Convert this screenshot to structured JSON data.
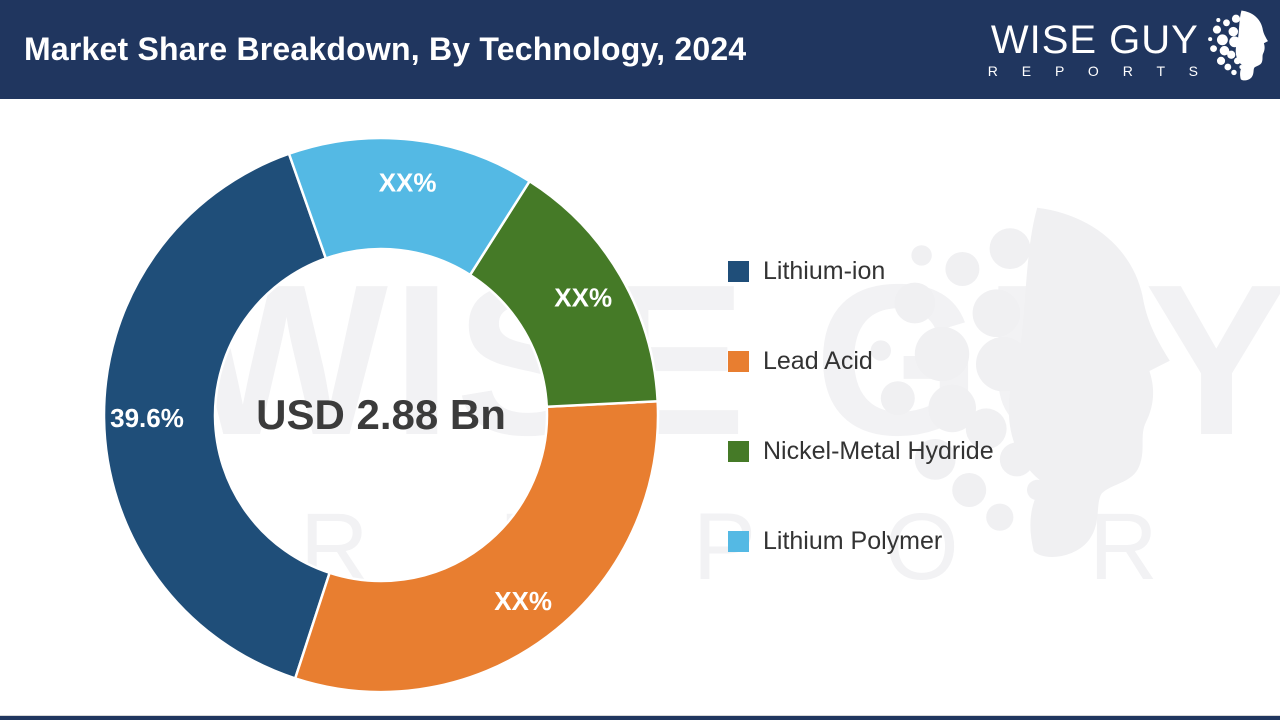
{
  "header": {
    "title": "Market Share Breakdown, By Technology, 2024"
  },
  "brand": {
    "name": "WISE GUY",
    "sub": "R E P O R T S"
  },
  "watermark": {
    "line1": "WISE GUY",
    "line2": "R E P O R T S"
  },
  "chart_data": {
    "type": "pie",
    "subtype": "donut",
    "title": "Market Share Breakdown, By Technology, 2024",
    "center_label": "USD 2.88 Bn",
    "start_angle_deg": -19.4,
    "direction": "counterclockwise",
    "legend_position": "right",
    "segments": [
      {
        "label": "Lithium-ion",
        "value_pct": 39.6,
        "display": "39.6%",
        "color": "#1F4E79"
      },
      {
        "label": "Lead Acid",
        "value_pct": 30.8,
        "display": "XX%",
        "color": "#E87E30"
      },
      {
        "label": "Nickel-Metal Hydride",
        "value_pct": 15.2,
        "display": "XX%",
        "color": "#457A27"
      },
      {
        "label": "Lithium Polymer",
        "value_pct": 14.4,
        "display": "XX%",
        "color": "#54B9E4"
      }
    ]
  },
  "colors": {
    "header_bg": "#20365F",
    "watermark": "#f2f2f4",
    "legend_text": "#333333",
    "center_text": "#3b3b3b"
  }
}
